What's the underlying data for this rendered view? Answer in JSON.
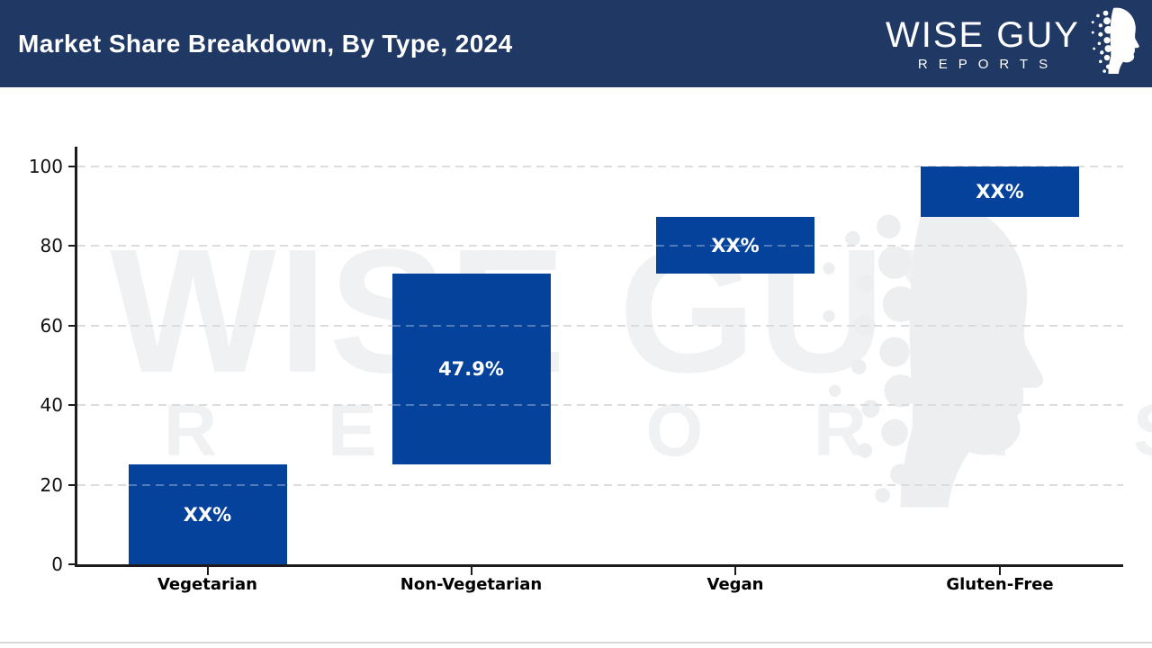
{
  "header": {
    "title": "Market Share Breakdown, By Type, 2024",
    "logo": {
      "line1": "WISE GUY",
      "line2": "REPORTS"
    }
  },
  "watermark": {
    "line1": "WISE GUY",
    "line2": "R E P O R T S"
  },
  "colors": {
    "header_bg": "#1f3864",
    "bar": "#05429b",
    "grid": "#dcdcdc",
    "axis": "#1c1c1c",
    "bar_label": "#ffffff",
    "watermark": "#f0f1f3"
  },
  "chart_data": {
    "type": "bar",
    "subtype": "waterfall",
    "title": "Market Share Breakdown, By Type, 2024",
    "categories": [
      "Vegetarian",
      "Non-Vegetarian",
      "Vegan",
      "Gluten-Free"
    ],
    "segments": [
      {
        "category": "Vegetarian",
        "start": 0,
        "end": 25.1,
        "value": 25.1,
        "label": "XX%"
      },
      {
        "category": "Non-Vegetarian",
        "start": 25.1,
        "end": 73.0,
        "value": 47.9,
        "label": "47.9%"
      },
      {
        "category": "Vegan",
        "start": 73.0,
        "end": 87.3,
        "value": 14.3,
        "label": "XX%"
      },
      {
        "category": "Gluten-Free",
        "start": 87.3,
        "end": 100,
        "value": 12.7,
        "label": "XX%"
      }
    ],
    "y_ticks": [
      0,
      20,
      40,
      60,
      80,
      100
    ],
    "ylim": [
      0,
      105
    ],
    "xlabel": "",
    "ylabel": "",
    "grid": "dashed-horizontal",
    "legend": "none"
  }
}
